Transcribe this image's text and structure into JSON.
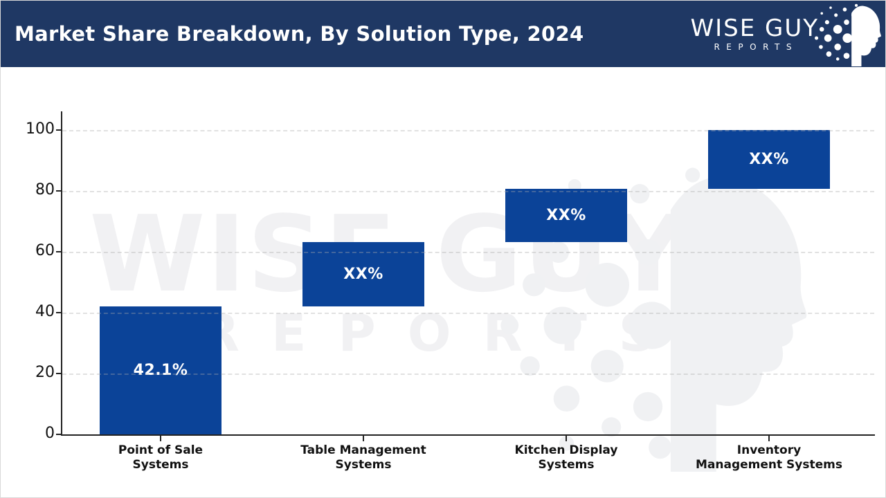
{
  "header": {
    "title": "Market Share Breakdown, By Solution Type, 2024",
    "logo": {
      "line1": "WISE GUY",
      "line2": "REPORTS"
    }
  },
  "watermark": {
    "line1": "WISE GUY",
    "line2": "REPORTS"
  },
  "chart_data": {
    "type": "bar",
    "subtype": "floating-waterfall",
    "title": "Market Share Breakdown, By Solution Type, 2024",
    "categories": [
      [
        "Point of Sale",
        "Systems"
      ],
      [
        "Table Management",
        "Systems"
      ],
      [
        "Kitchen Display",
        "Systems"
      ],
      [
        "Inventory",
        "Management Systems"
      ]
    ],
    "segments": [
      {
        "start": 0,
        "end": 42.1,
        "label": "42.1%"
      },
      {
        "start": 42.1,
        "end": 63.2,
        "label": "XX%"
      },
      {
        "start": 63.2,
        "end": 80.7,
        "label": "XX%"
      },
      {
        "start": 80.7,
        "end": 100,
        "label": "XX%"
      }
    ],
    "yticks": [
      0,
      20,
      40,
      60,
      80,
      100
    ],
    "ylim": [
      0,
      106
    ],
    "xlabel": "",
    "ylabel": "",
    "legend": "none",
    "grid": "horizontal-dashed",
    "colors": {
      "bar": "#0b4398",
      "bar_label": "#ffffff",
      "header_bg": "#1f3864",
      "axis": "#222222",
      "watermark": "#f1f1f3"
    }
  }
}
